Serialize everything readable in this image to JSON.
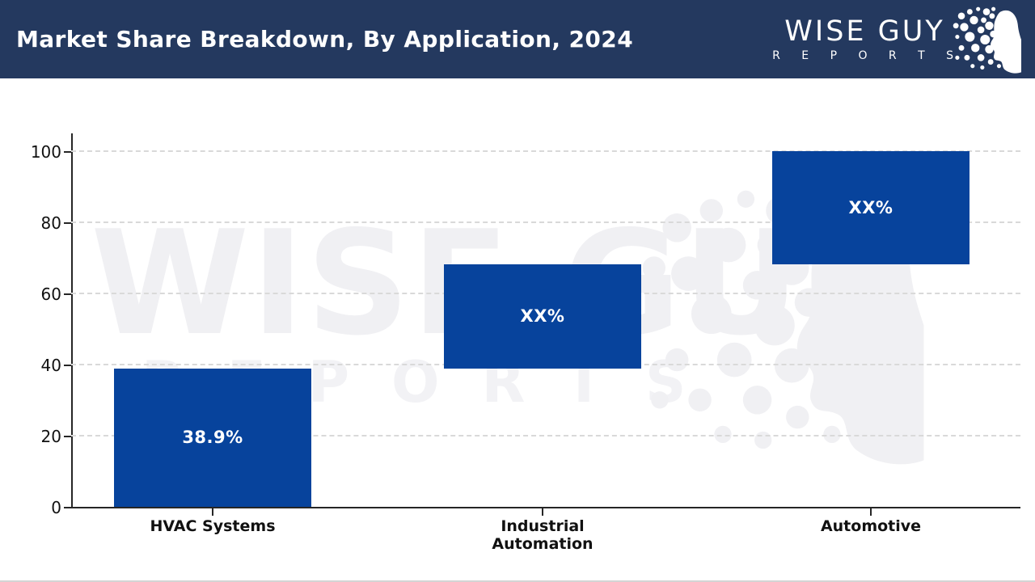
{
  "header": {
    "title": "Market Share Breakdown, By Application, 2024",
    "logo": {
      "line1": "WISE GUY",
      "line2": "R E P O R T S"
    }
  },
  "watermark": {
    "line1": "WISE GUY",
    "line2": "REPORTS"
  },
  "colors": {
    "header_bg": "#24395f",
    "bar": "#07439c",
    "bar_label": "#ffffff",
    "grid": "#d9d9d9",
    "axis": "#262626",
    "watermark": "#f0f0f3"
  },
  "chart_data": {
    "type": "bar",
    "subtype": "waterfall",
    "title": "Market Share Breakdown, By Application, 2024",
    "xlabel": "",
    "ylabel": "",
    "categories": [
      "HVAC Systems",
      "Industrial\nAutomation",
      "Automotive"
    ],
    "segments": [
      {
        "category": "HVAC Systems",
        "start": 0,
        "end": 38.9,
        "label": "38.9%"
      },
      {
        "category": "Industrial Automation",
        "start": 38.9,
        "end": 68.2,
        "label": "XX%"
      },
      {
        "category": "Automotive",
        "start": 68.2,
        "end": 100,
        "label": "XX%"
      }
    ],
    "yticks": [
      0,
      20,
      40,
      60,
      80,
      100
    ],
    "ylim": [
      0,
      105
    ],
    "grid": "horizontal-dashed",
    "legend": false,
    "bar_color": "#07439c"
  }
}
